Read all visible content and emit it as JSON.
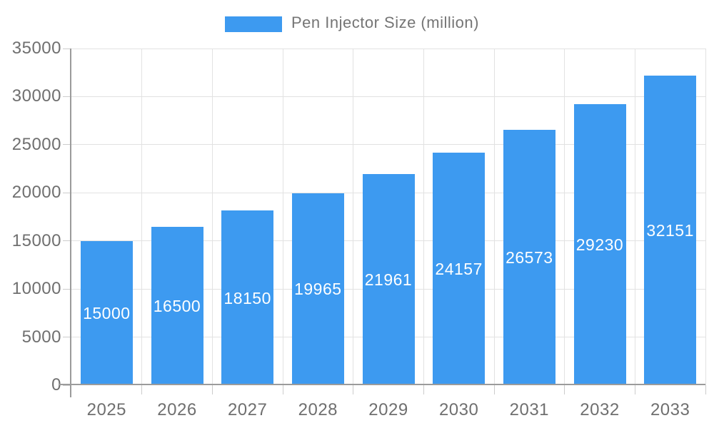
{
  "chart_data": {
    "type": "bar",
    "title": "",
    "legend": {
      "label": "Pen Injector Size (million)",
      "position": "top"
    },
    "categories": [
      "2025",
      "2026",
      "2027",
      "2028",
      "2029",
      "2030",
      "2031",
      "2032",
      "2033"
    ],
    "series": [
      {
        "name": "Pen Injector Size (million)",
        "values": [
          15000,
          16500,
          18150,
          19965,
          21961,
          24157,
          26573,
          29230,
          32151
        ]
      }
    ],
    "bar_value_labels": [
      "15000",
      "16500",
      "18150",
      "19965",
      "21961",
      "24157",
      "26573",
      "29230",
      "32151"
    ],
    "xlabel": "",
    "ylabel": "",
    "ylim": [
      0,
      35000
    ],
    "yticks": [
      0,
      5000,
      10000,
      15000,
      20000,
      25000,
      30000,
      35000
    ],
    "ytick_labels": [
      "0",
      "5000",
      "10000",
      "15000",
      "20000",
      "25000",
      "30000",
      "35000"
    ],
    "grid": true,
    "colors": {
      "bar": "#3d9af0",
      "bar_label_text": "#ffffff",
      "axis_text": "#6f6f6f",
      "legend_text": "#757575",
      "gridline": "#e2e2e2",
      "axis_line": "#9b9b9b",
      "tick": "#cccccc",
      "background": "#ffffff"
    }
  }
}
